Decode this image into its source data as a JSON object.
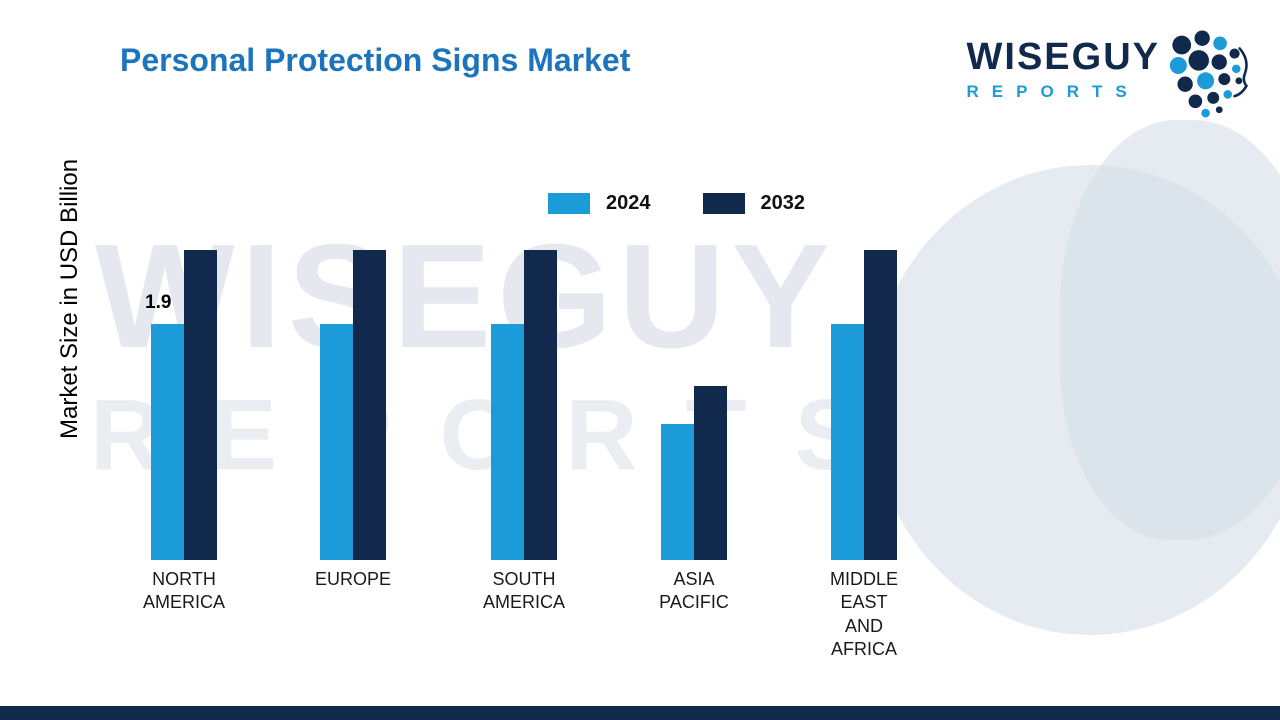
{
  "title": "Personal Protection Signs Market",
  "logo": {
    "line1": "WISEGUY",
    "line2": "REPORTS"
  },
  "watermark": {
    "line1": "WISEGUY",
    "line2": "REPORTS"
  },
  "annotation": "1.9",
  "y_axis_label": "Market Size in USD Billion",
  "legend": [
    {
      "label": "2024",
      "color": "#1b9cd8"
    },
    {
      "label": "2032",
      "color": "#12294e"
    }
  ],
  "colors": {
    "title": "#1b74bc",
    "bar_2024": "#1b9cd8",
    "bar_2032": "#12294e",
    "footer": "#12294e"
  },
  "chart_data": {
    "type": "bar",
    "title": "Personal Protection Signs Market",
    "xlabel": "",
    "ylabel": "Market Size in USD Billion",
    "ylim": [
      0,
      2.8
    ],
    "grid": false,
    "legend_position": "top",
    "categories": [
      [
        "NORTH",
        "AMERICA"
      ],
      [
        "EUROPE"
      ],
      [
        "SOUTH",
        "AMERICA"
      ],
      [
        "ASIA",
        "PACIFIC"
      ],
      [
        "MIDDLE",
        "EAST",
        "AND",
        "AFRICA"
      ]
    ],
    "series": [
      {
        "name": "2024",
        "color": "#1b9cd8",
        "values": [
          1.9,
          1.9,
          1.9,
          1.1,
          1.9
        ]
      },
      {
        "name": "2032",
        "color": "#12294e",
        "values": [
          2.5,
          2.5,
          2.5,
          1.4,
          2.5
        ]
      }
    ],
    "data_labels": [
      {
        "series": "2024",
        "category_index": 0,
        "text": "1.9"
      }
    ]
  }
}
